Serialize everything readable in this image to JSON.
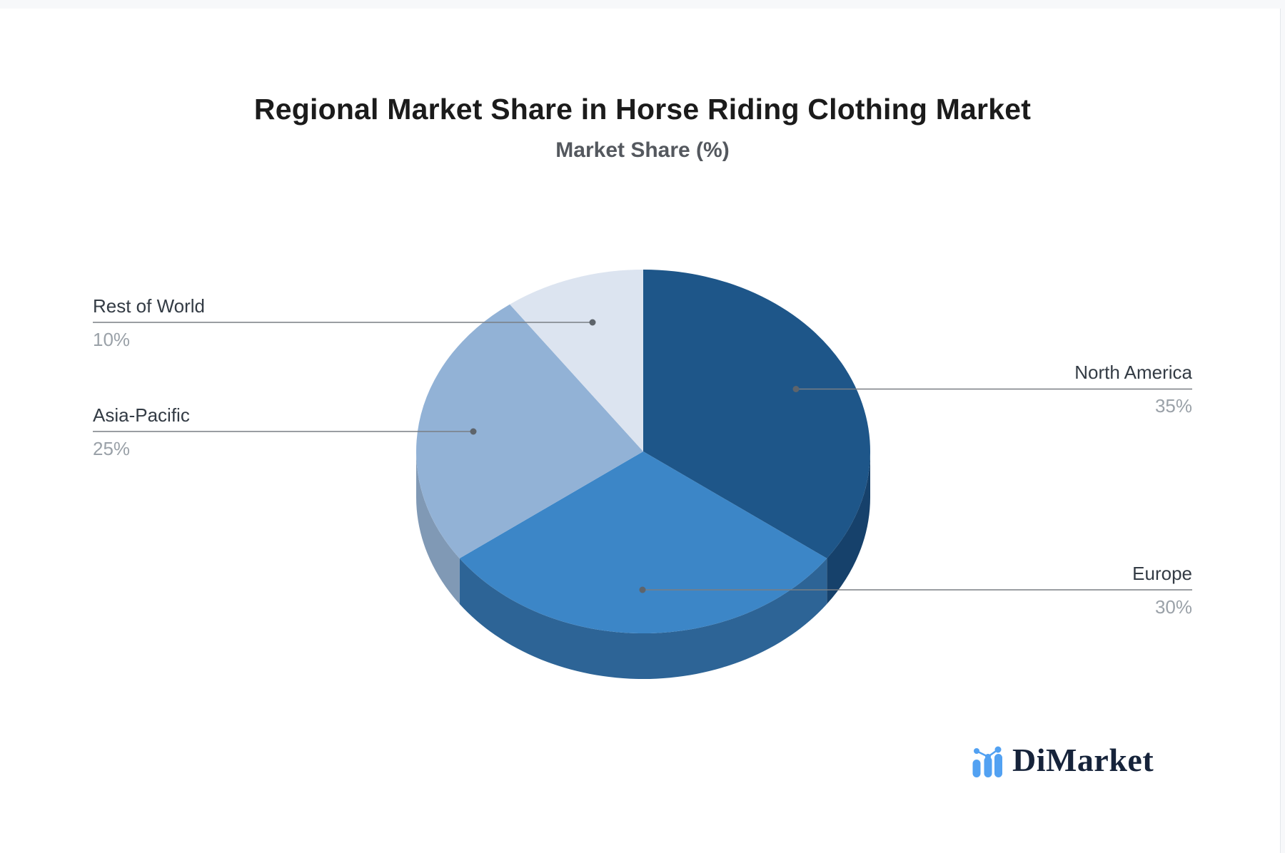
{
  "page": {
    "background_color": "#f7f8fa",
    "card_color": "#ffffff"
  },
  "title": "Regional Market Share in Horse Riding Clothing Market",
  "subtitle": "Market Share (%)",
  "logo": {
    "text": "DiMarket",
    "icon": "bar-chart-logo-icon",
    "text_color": "#16233a",
    "icon_color": "#52a1f2"
  },
  "chart_data": {
    "type": "pie",
    "style": "3d",
    "title": "Regional Market Share in Horse Riding Clothing Market",
    "subtitle": "Market Share (%)",
    "unit": "%",
    "direction": "clockwise",
    "start_angle_deg": 0,
    "legend_position": "none",
    "label_style": "callout-leader-lines",
    "slices": [
      {
        "label": "North America",
        "value": 35,
        "value_text": "35%",
        "color": "#1E5689",
        "side_color": "#16416B",
        "callout_side": "right"
      },
      {
        "label": "Europe",
        "value": 30,
        "value_text": "30%",
        "color": "#3C86C7",
        "side_color": "#2D6496",
        "callout_side": "right"
      },
      {
        "label": "Asia-Pacific",
        "value": 25,
        "value_text": "25%",
        "color": "#92B2D6",
        "side_color": "#8099B5",
        "callout_side": "left"
      },
      {
        "label": "Rest of World",
        "value": 10,
        "value_text": "10%",
        "color": "#DCE4F0",
        "side_color": "#BCC9DB",
        "callout_side": "left"
      }
    ],
    "leader_line_color": "#797e84",
    "leader_dot_color": "#5e646b",
    "label_text_color": "#333b44",
    "value_text_color": "#9aa1a8"
  }
}
